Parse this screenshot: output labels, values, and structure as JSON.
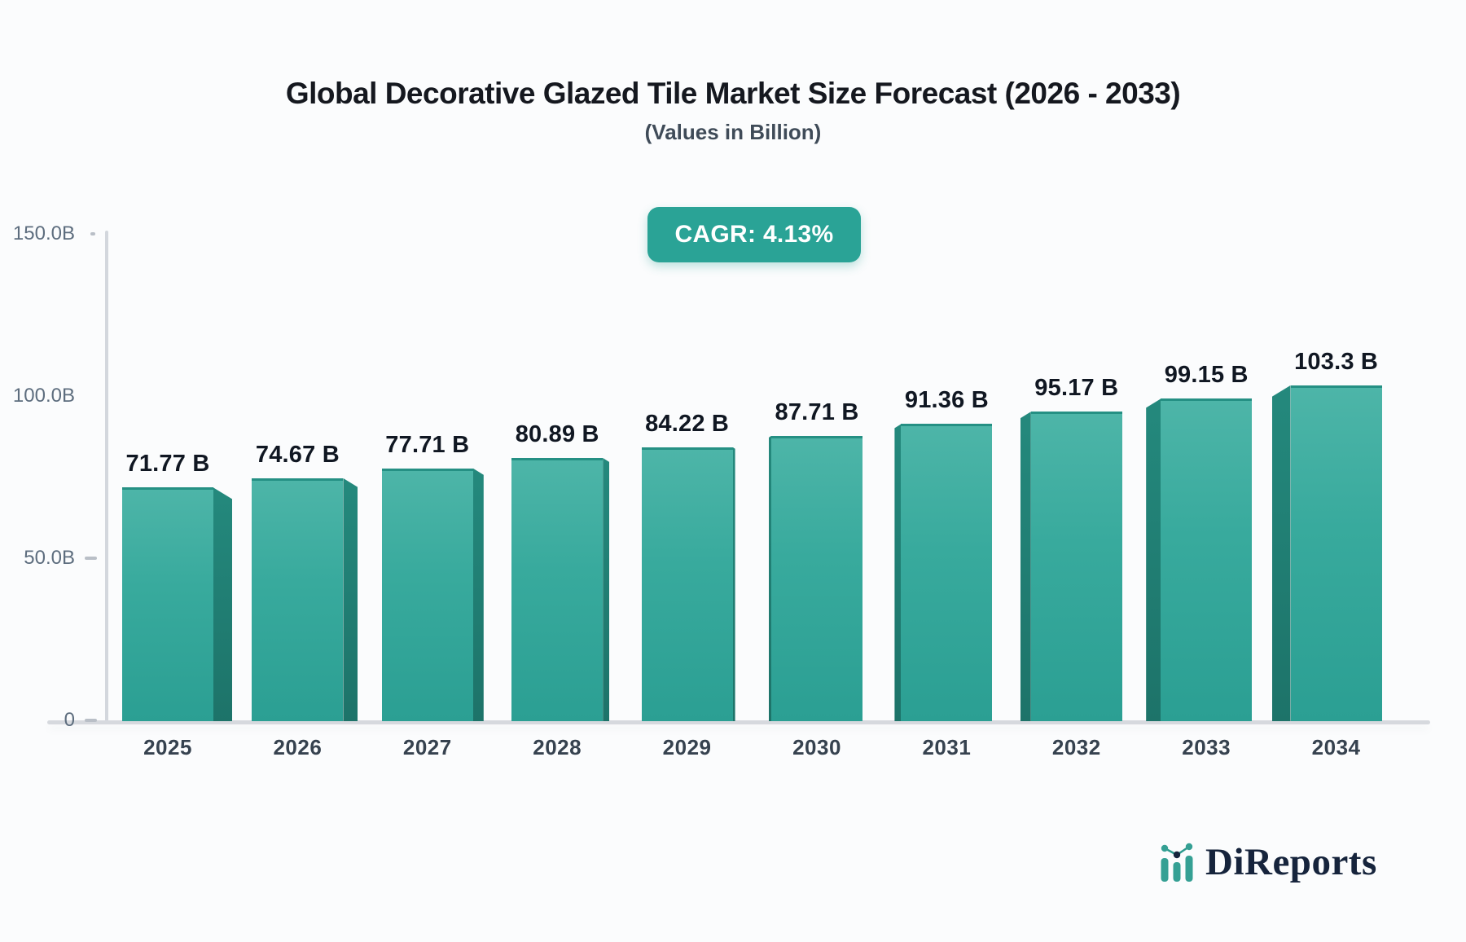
{
  "title": "Global Decorative Glazed Tile Market Size Forecast (2026 - 2033)",
  "subtitle": "(Values in Billion)",
  "badge": {
    "label": "CAGR: 4.13%",
    "color": "#2aa396"
  },
  "brand": {
    "name": "DiReports",
    "icon": "bar-trend-logo-icon",
    "navy": "#16243c",
    "teal": "#35a094"
  },
  "chart_data": {
    "type": "bar",
    "style": "3d-perspective-bars",
    "title": "Global Decorative Glazed Tile Market Size Forecast (2026 - 2033)",
    "subtitle": "(Values in Billion)",
    "cagr_label": "CAGR: 4.13%",
    "categories": [
      "2025",
      "2026",
      "2027",
      "2028",
      "2029",
      "2030",
      "2031",
      "2032",
      "2033",
      "2034"
    ],
    "values": [
      71.77,
      74.67,
      77.71,
      80.89,
      84.22,
      87.71,
      91.36,
      95.17,
      99.15,
      103.3
    ],
    "bar_labels": [
      "71.77 B",
      "74.67 B",
      "77.71 B",
      "80.89 B",
      "84.22 B",
      "87.71 B",
      "91.36 B",
      "95.17 B",
      "99.15 B",
      "103.3 B"
    ],
    "y_ticks": [
      {
        "label": "150.0B",
        "value": 150
      },
      {
        "label": "100.0B",
        "value": 100
      },
      {
        "label": "50.0B",
        "value": 50
      },
      {
        "label": "0",
        "value": 0
      }
    ],
    "ylim": [
      0,
      150
    ],
    "xlabel": "",
    "ylabel": "",
    "grid": false,
    "legend": false,
    "bar_color_face": "#38aa9d",
    "bar_color_side": "#1f7e73",
    "axis_color": "#d6d9de"
  }
}
